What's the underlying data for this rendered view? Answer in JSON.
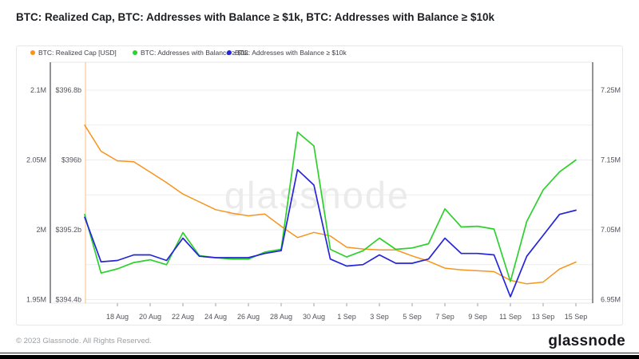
{
  "page_title": "BTC: Realized Cap, BTC: Addresses with Balance ≥ $1k, BTC: Addresses with Balance ≥ $10k",
  "watermark": "glassnode",
  "footer": {
    "copyright": "© 2023 Glassnode. All Rights Reserved.",
    "logo": "glassnode"
  },
  "chart_data": {
    "type": "line",
    "grid": true,
    "legend_position": "top-left",
    "x": [
      "16 Aug",
      "17 Aug",
      "18 Aug",
      "19 Aug",
      "20 Aug",
      "21 Aug",
      "22 Aug",
      "23 Aug",
      "24 Aug",
      "25 Aug",
      "26 Aug",
      "27 Aug",
      "28 Aug",
      "29 Aug",
      "30 Aug",
      "31 Aug",
      "1 Sep",
      "2 Sep",
      "3 Sep",
      "4 Sep",
      "5 Sep",
      "6 Sep",
      "7 Sep",
      "8 Sep",
      "9 Sep",
      "10 Sep",
      "11 Sep",
      "12 Sep",
      "13 Sep",
      "14 Sep",
      "15 Sep"
    ],
    "x_tick_labels": [
      "18 Aug",
      "20 Aug",
      "22 Aug",
      "24 Aug",
      "26 Aug",
      "28 Aug",
      "30 Aug",
      "1 Sep",
      "3 Sep",
      "5 Sep",
      "7 Sep",
      "9 Sep",
      "11 Sep",
      "13 Sep",
      "15 Sep"
    ],
    "x_tick_indices": [
      2,
      4,
      6,
      8,
      10,
      12,
      14,
      16,
      18,
      20,
      22,
      24,
      26,
      28,
      30
    ],
    "series": [
      {
        "name": "BTC: Realized Cap [USD]",
        "color": "#f7941d",
        "axis": "usd_left",
        "unit": "$ billion",
        "values": [
          396.4,
          396.1,
          395.99,
          395.98,
          395.86,
          395.74,
          395.61,
          395.52,
          395.43,
          395.39,
          395.36,
          395.38,
          395.24,
          395.11,
          395.17,
          395.13,
          395.0,
          394.98,
          394.97,
          394.97,
          394.9,
          394.84,
          394.76,
          394.74,
          394.73,
          394.72,
          394.62,
          394.58,
          394.6,
          394.75,
          394.83
        ]
      },
      {
        "name": "BTC: Addresses with Balance ≥ $1k",
        "color": "#2ed02e",
        "axis": "count_right",
        "unit": "million addresses",
        "values": [
          7.072,
          6.988,
          6.994,
          7.003,
          7.007,
          7.0,
          7.046,
          7.013,
          7.01,
          7.008,
          7.008,
          7.018,
          7.022,
          7.19,
          7.17,
          7.022,
          7.011,
          7.02,
          7.038,
          7.022,
          7.024,
          7.03,
          7.08,
          7.054,
          7.055,
          7.051,
          6.976,
          7.062,
          7.107,
          7.133,
          7.15
        ]
      },
      {
        "name": "BTC: Addresses with Balance ≥ $10k",
        "color": "#2525d9",
        "axis": "count_left",
        "unit": "million addresses",
        "values": [
          2.009,
          1.977,
          1.978,
          1.982,
          1.982,
          1.978,
          1.994,
          1.981,
          1.98,
          1.98,
          1.98,
          1.983,
          1.985,
          2.043,
          2.032,
          1.979,
          1.974,
          1.975,
          1.982,
          1.976,
          1.976,
          1.979,
          1.994,
          1.983,
          1.983,
          1.982,
          1.952,
          1.981,
          1.996,
          2.011,
          2.014
        ]
      }
    ],
    "axes": {
      "count_left": {
        "side": "far-left",
        "tick_labels": [
          "2.1M",
          "2.05M",
          "2M",
          "1.95M"
        ],
        "tick_values": [
          2.1,
          2.05,
          2.0,
          1.95
        ]
      },
      "usd_left": {
        "side": "inner-left",
        "tick_labels": [
          "$396.8b",
          "$396b",
          "$395.2b",
          "$394.4b"
        ],
        "tick_values": [
          396.8,
          396.0,
          395.2,
          394.4
        ]
      },
      "count_right": {
        "side": "right",
        "tick_labels": [
          "7.25M",
          "7.15M",
          "7.05M",
          "6.95M"
        ],
        "tick_values": [
          7.25,
          7.15,
          7.05,
          6.95
        ]
      }
    }
  }
}
